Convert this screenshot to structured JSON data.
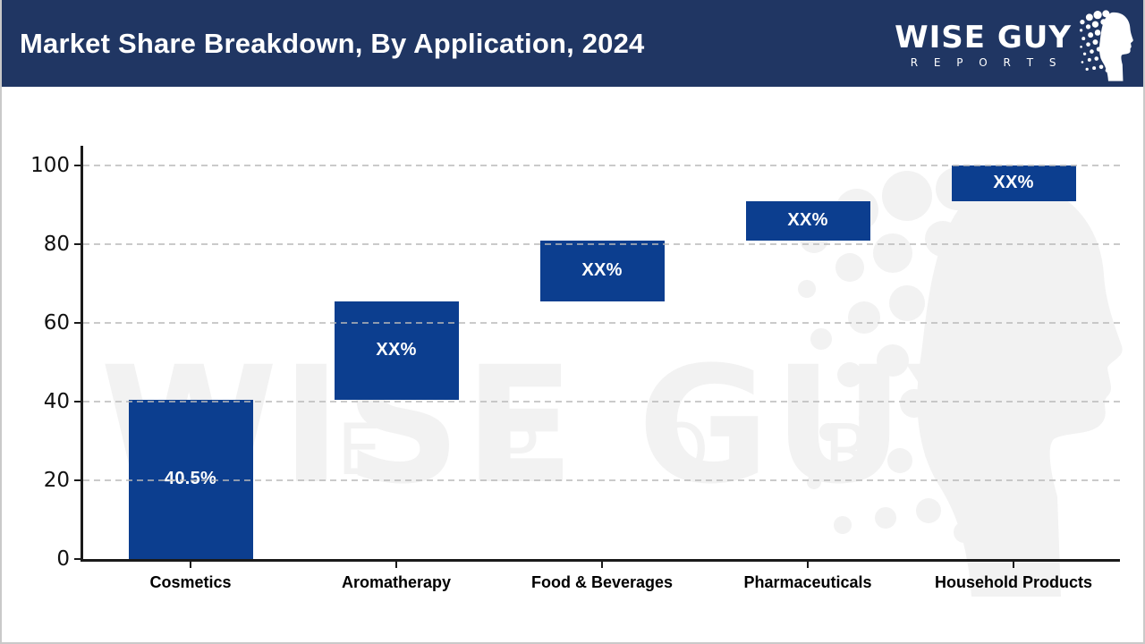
{
  "header": {
    "title": "Market Share Breakdown, By Application, 2024",
    "logo": {
      "line1": "WISE GUY",
      "line2": "R E P O R T S"
    }
  },
  "watermark": {
    "line1": "WISE GUY",
    "line2": "R E P O R T S"
  },
  "chart_data": {
    "type": "bar",
    "subtype": "waterfall",
    "title": "Market Share Breakdown, By Application, 2024",
    "categories": [
      "Cosmetics",
      "Aromatherapy",
      "Food & Beverages",
      "Pharmaceuticals",
      "Household Products"
    ],
    "segments": [
      {
        "category": "Cosmetics",
        "start": 0,
        "end": 40.5,
        "label": "40.5%"
      },
      {
        "category": "Aromatherapy",
        "start": 40.5,
        "end": 65.5,
        "label": "XX%"
      },
      {
        "category": "Food & Beverages",
        "start": 65.5,
        "end": 81,
        "label": "XX%"
      },
      {
        "category": "Pharmaceuticals",
        "start": 81,
        "end": 91,
        "label": "XX%"
      },
      {
        "category": "Household Products",
        "start": 91,
        "end": 100,
        "label": "XX%"
      }
    ],
    "yticks": [
      0,
      20,
      40,
      60,
      80,
      100
    ],
    "ylim": [
      0,
      105
    ],
    "xlabel": "",
    "ylabel": "",
    "grid": "horizontal-dashed-over-bars",
    "legend": "none"
  },
  "colors": {
    "header_bg": "#203663",
    "bar": "#0c3e8f",
    "bar_label": "#ffffff",
    "grid": "#bebebe",
    "axis": "#1a1a1a",
    "watermark": "#f2f2f2",
    "border": "#c9c9c9"
  }
}
